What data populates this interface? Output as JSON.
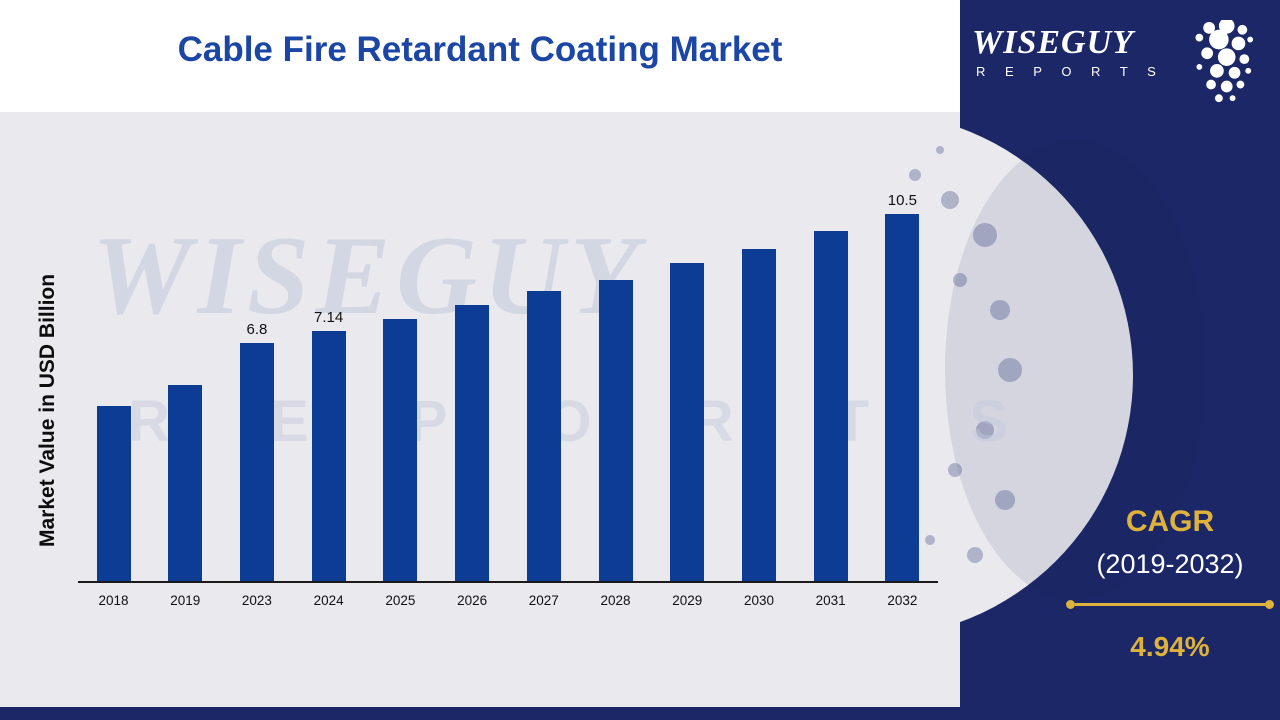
{
  "title": "Cable Fire Retardant Coating Market",
  "y_axis_label": "Market Value in USD Billion",
  "watermark": {
    "line1": "WISEGUY",
    "line2": "R E P O R T S"
  },
  "logo": {
    "name": "WISEGUY",
    "sub": "R E P O R T S",
    "face_icon": "dotted-head-profile"
  },
  "cagr": {
    "heading": "CAGR",
    "period": "(2019-2032)",
    "value": "4.94%"
  },
  "colors": {
    "bar": "#0c3c94",
    "title_blue": "#1c46a5",
    "panel_navy": "#1b2766",
    "gold": "#dfb23c",
    "chart_background": "#e9e9ee"
  },
  "chart_data": {
    "type": "bar",
    "categories": [
      "2018",
      "2019",
      "2023",
      "2024",
      "2025",
      "2026",
      "2027",
      "2028",
      "2029",
      "2030",
      "2031",
      "2032"
    ],
    "values": [
      5.0,
      5.6,
      6.8,
      7.14,
      7.5,
      7.9,
      8.3,
      8.6,
      9.1,
      9.5,
      10.0,
      10.5
    ],
    "bar_labels": [
      "",
      "",
      "6.8",
      "7.14",
      "",
      "",
      "",
      "",
      "",
      "",
      "",
      "10.5"
    ],
    "title": "Cable Fire Retardant Coating Market",
    "xlabel": "",
    "ylabel": "Market Value in USD Billion",
    "ylim": [
      0,
      12
    ],
    "unit": "USD Billion",
    "grid": false,
    "legend": "none"
  }
}
